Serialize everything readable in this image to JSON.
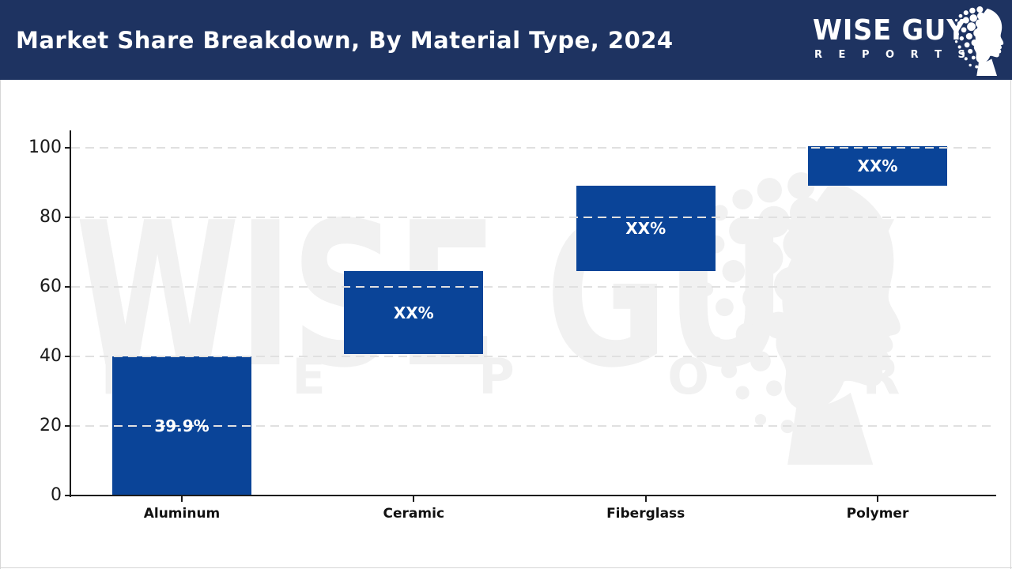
{
  "header": {
    "title": "Market Share Breakdown, By Material Type, 2024"
  },
  "logo": {
    "line1": "WISE GUY",
    "line2": "R E P O R T S",
    "icon": "dotted-head-profile-icon"
  },
  "watermark": {
    "line1": "WISE GUY",
    "line2": "R E P O R T S",
    "icon": "dotted-head-profile-icon"
  },
  "colors": {
    "header_bg": "#1e3361",
    "bar": "#0a4498",
    "bar_label": "#ffffff",
    "gridline": "#e0e0e0",
    "axis": "#1c1c1c",
    "watermark": "#f1f1f1"
  },
  "chart_data": {
    "type": "bar",
    "subtype": "floating-segment-waterfall",
    "title": "Market Share Breakdown, By Material Type, 2024",
    "xlabel": "",
    "ylabel": "",
    "categories": [
      "Aluminum",
      "Ceramic",
      "Fiberglass",
      "Polymer"
    ],
    "segments": [
      {
        "category": "Aluminum",
        "start": 0,
        "end": 39.9,
        "label": "39.9%"
      },
      {
        "category": "Ceramic",
        "start": 40.6,
        "end": 64.5,
        "label": "XX%"
      },
      {
        "category": "Fiberglass",
        "start": 64.5,
        "end": 89.1,
        "label": "XX%"
      },
      {
        "category": "Polymer",
        "start": 89.1,
        "end": 100.4,
        "label": "XX%"
      }
    ],
    "ylim": [
      0,
      100
    ],
    "yticks": [
      0,
      20,
      40,
      60,
      80,
      100
    ],
    "yticklabels": [
      "0",
      "20",
      "40",
      "60",
      "80",
      "100"
    ],
    "grid": "horizontal dashed",
    "legend": "none"
  }
}
